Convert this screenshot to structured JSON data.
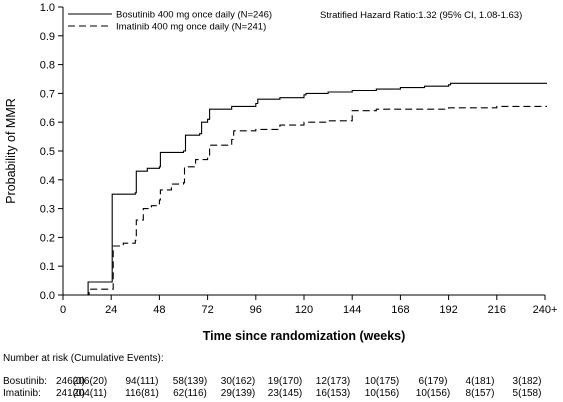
{
  "chart_data": {
    "type": "line",
    "title": "",
    "xlabel": "Time since randomization (weeks)",
    "ylabel": "Probability of MMR",
    "xlim": [
      0,
      240
    ],
    "ylim": [
      0,
      1.0
    ],
    "x_ticks": [
      0,
      24,
      48,
      72,
      96,
      120,
      144,
      168,
      192,
      216,
      240
    ],
    "x_tick_labels": [
      "0",
      "24",
      "48",
      "72",
      "96",
      "120",
      "144",
      "168",
      "192",
      "216",
      "240+"
    ],
    "y_ticks": [
      0.0,
      0.1,
      0.2,
      0.3,
      0.4,
      0.5,
      0.6,
      0.7,
      0.8,
      0.9,
      1.0
    ],
    "y_tick_labels": [
      "0.0",
      "0.1",
      "0.2",
      "0.3",
      "0.4",
      "0.5",
      "0.6",
      "0.7",
      "0.8",
      "0.9",
      "1.0"
    ],
    "grid": false,
    "legend_position": "top-left",
    "annotation": "Stratified Hazard Ratio:1.32 (95% CI, 1.08-1.63)",
    "series": [
      {
        "name": "Bosutinib 400 mg once daily (N=246)",
        "line_style": "solid",
        "color": "#000000",
        "points": [
          [
            0,
            0.0
          ],
          [
            12,
            0.0
          ],
          [
            12.5,
            0.045
          ],
          [
            24,
            0.045
          ],
          [
            24.5,
            0.35
          ],
          [
            36,
            0.355
          ],
          [
            36.5,
            0.43
          ],
          [
            42,
            0.44
          ],
          [
            48,
            0.445
          ],
          [
            48.5,
            0.495
          ],
          [
            60,
            0.5
          ],
          [
            61,
            0.555
          ],
          [
            68,
            0.56
          ],
          [
            69,
            0.6
          ],
          [
            72,
            0.61
          ],
          [
            73,
            0.645
          ],
          [
            84,
            0.655
          ],
          [
            96,
            0.665
          ],
          [
            97,
            0.68
          ],
          [
            108,
            0.685
          ],
          [
            120,
            0.695
          ],
          [
            121,
            0.7
          ],
          [
            132,
            0.705
          ],
          [
            144,
            0.71
          ],
          [
            156,
            0.715
          ],
          [
            168,
            0.72
          ],
          [
            180,
            0.725
          ],
          [
            192,
            0.73
          ],
          [
            193,
            0.735
          ],
          [
            216,
            0.735
          ],
          [
            241,
            0.735
          ]
        ]
      },
      {
        "name": "Imatinib 400 mg once daily (N=241)",
        "line_style": "dashed",
        "color": "#000000",
        "points": [
          [
            0,
            0.0
          ],
          [
            12,
            0.0
          ],
          [
            13,
            0.02
          ],
          [
            24,
            0.02
          ],
          [
            25,
            0.17
          ],
          [
            30,
            0.18
          ],
          [
            36,
            0.19
          ],
          [
            36.5,
            0.26
          ],
          [
            40,
            0.3
          ],
          [
            44,
            0.31
          ],
          [
            48,
            0.33
          ],
          [
            48.5,
            0.365
          ],
          [
            54,
            0.385
          ],
          [
            60,
            0.39
          ],
          [
            60.5,
            0.445
          ],
          [
            66,
            0.47
          ],
          [
            72,
            0.48
          ],
          [
            73,
            0.52
          ],
          [
            84,
            0.54
          ],
          [
            85,
            0.57
          ],
          [
            96,
            0.575
          ],
          [
            108,
            0.59
          ],
          [
            120,
            0.6
          ],
          [
            132,
            0.605
          ],
          [
            144,
            0.64
          ],
          [
            156,
            0.645
          ],
          [
            168,
            0.645
          ],
          [
            180,
            0.645
          ],
          [
            192,
            0.65
          ],
          [
            216,
            0.655
          ],
          [
            241,
            0.655
          ]
        ]
      }
    ],
    "risk_table": {
      "title": "Number at risk (Cumulative Events):",
      "rows": [
        {
          "label": "Bosutinib:",
          "values": [
            "246(0)",
            "206(20)",
            "94(111)",
            "58(139)",
            "30(162)",
            "19(170)",
            "12(173)",
            "10(175)",
            "6(179)",
            "4(181)",
            "3(182)"
          ]
        },
        {
          "label": "Imatinib:",
          "values": [
            "241(0)",
            "204(11)",
            "116(81)",
            "62(116)",
            "29(139)",
            "23(145)",
            "16(153)",
            "10(156)",
            "10(156)",
            "8(157)",
            "5(158)"
          ]
        }
      ]
    }
  }
}
